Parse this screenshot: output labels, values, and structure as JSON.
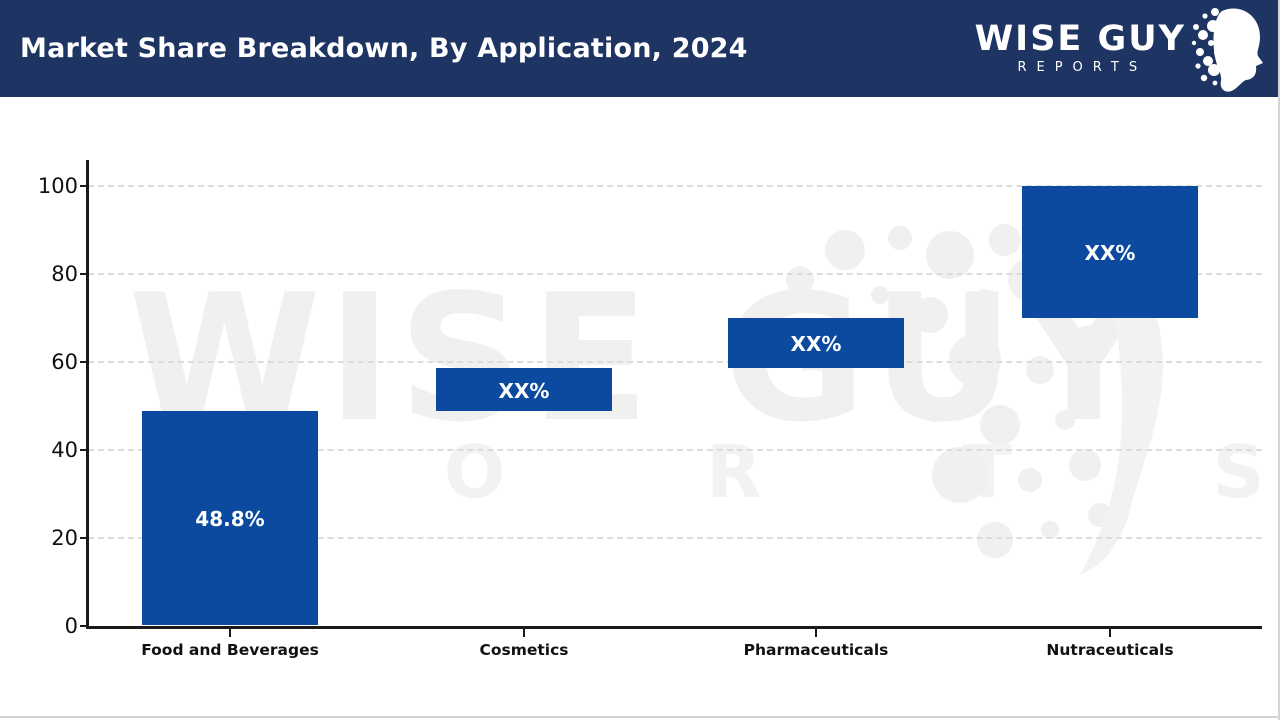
{
  "page": {
    "bg_color": "#ffffff",
    "border_color": "#d5d5d5"
  },
  "header": {
    "bg_color": "#1e3563",
    "title": "Market Share Breakdown, By Application, 2024",
    "logo": {
      "line1": "WISE GUY",
      "line2": "REPORTS"
    }
  },
  "watermark": {
    "line1": "WISE GUY",
    "line2": "P O R T S"
  },
  "chart_data": {
    "type": "bar",
    "subtype": "waterfall",
    "title": "Market Share Breakdown, By Application, 2024",
    "categories": [
      "Food and Beverages",
      "Cosmetics",
      "Pharmaceuticals",
      "Nutraceuticals"
    ],
    "segments": [
      {
        "category": "Food and Beverages",
        "start": 0,
        "end": 48.8,
        "label": "48.8%"
      },
      {
        "category": "Cosmetics",
        "start": 48.8,
        "end": 58.6,
        "label": "XX%"
      },
      {
        "category": "Pharmaceuticals",
        "start": 58.6,
        "end": 70,
        "label": "XX%"
      },
      {
        "category": "Nutraceuticals",
        "start": 70,
        "end": 100,
        "label": "XX%"
      }
    ],
    "ylim": [
      0,
      100
    ],
    "yticks": [
      0,
      20,
      40,
      60,
      80,
      100
    ],
    "xlabel": "",
    "ylabel": "",
    "legend": "none",
    "grid": "horizontal-dashed",
    "bar_color": "#0c4aa0",
    "bar_label_color": "#ffffff",
    "axis_color": "#1a1a1a",
    "gridline_color": "#dcdcdc",
    "tick_label_color": "#111111"
  }
}
